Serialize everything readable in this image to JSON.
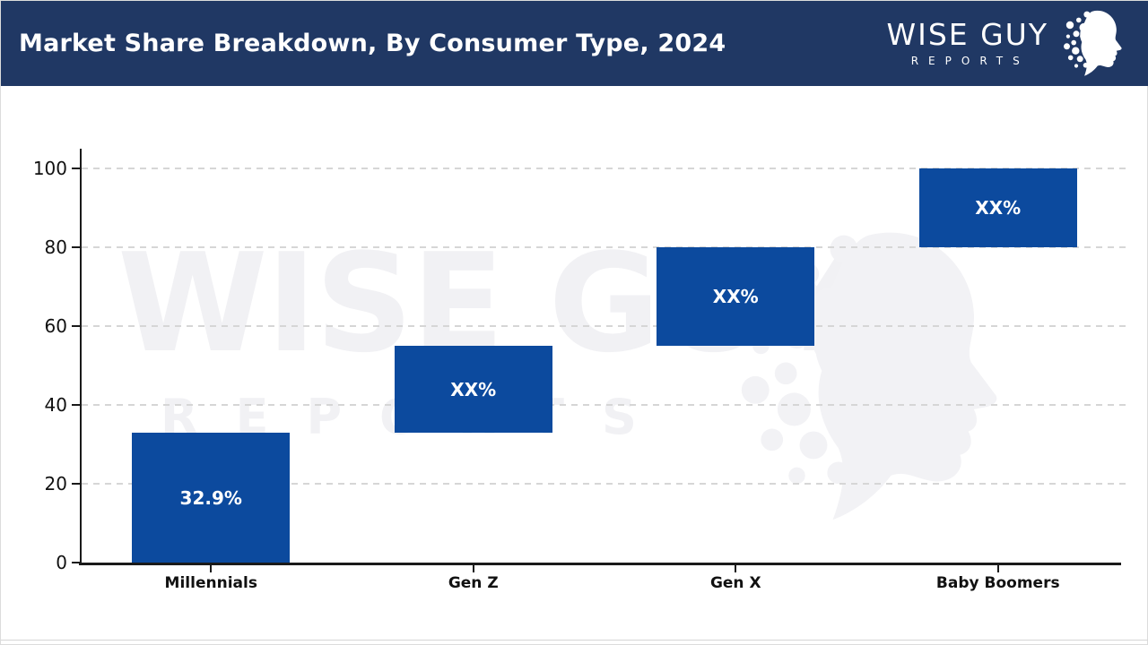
{
  "header": {
    "title": "Market Share Breakdown, By Consumer Type, 2024",
    "logo": {
      "line1": "WISE GUY",
      "line2": "REPORTS"
    }
  },
  "watermark": {
    "line1": "WISE GUY",
    "line2": "REPORTS"
  },
  "colors": {
    "header_bg": "#203864",
    "bar_blue": "#0c4a9e",
    "axis": "#1a1a1a",
    "grid": "#d6d6d6",
    "watermark": "#f1f1f4"
  },
  "chart_data": {
    "type": "bar",
    "subtype": "waterfall",
    "title": "Market Share Breakdown, By Consumer Type, 2024",
    "xlabel": "",
    "ylabel": "",
    "categories": [
      "Millennials",
      "Gen Z",
      "Gen X",
      "Baby Boomers"
    ],
    "bars": [
      {
        "category": "Millennials",
        "start": 0,
        "end": 32.9,
        "value_label": "32.9%"
      },
      {
        "category": "Gen Z",
        "start": 32.9,
        "end": 55,
        "value_label": "XX%"
      },
      {
        "category": "Gen X",
        "start": 55,
        "end": 80,
        "value_label": "XX%"
      },
      {
        "category": "Baby Boomers",
        "start": 80,
        "end": 100,
        "value_label": "XX%"
      }
    ],
    "yticks": [
      0,
      20,
      40,
      60,
      80,
      100
    ],
    "ylim": [
      0,
      105
    ],
    "grid": "horizontal-dashed",
    "legend": "none",
    "bar_color": "#0c4a9e"
  }
}
